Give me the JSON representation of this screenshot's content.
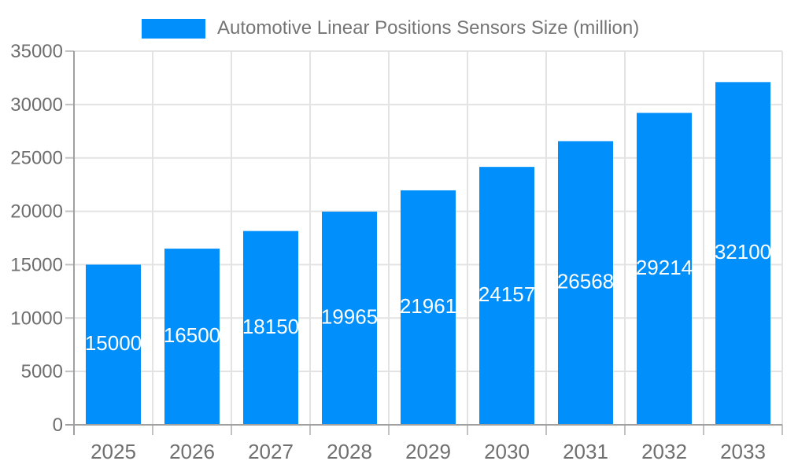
{
  "chart_data": {
    "type": "bar",
    "title": "Automotive Linear Positions Sensors Size (million)",
    "series_name": "Automotive Linear Positions Sensors Size (million)",
    "categories": [
      "2025",
      "2026",
      "2027",
      "2028",
      "2029",
      "2030",
      "2031",
      "2032",
      "2033"
    ],
    "values": [
      15000,
      16500,
      18150,
      19965,
      21961,
      24157,
      26568,
      29214,
      32100
    ],
    "xlabel": "",
    "ylabel": "",
    "ylim": [
      0,
      35000
    ],
    "y_tick_step": 5000,
    "y_ticks": [
      0,
      5000,
      10000,
      15000,
      20000,
      25000,
      30000,
      35000
    ],
    "grid": true,
    "legend_position": "top-center",
    "data_labels_position": "inside-center",
    "colors": {
      "bar": "#008ffb",
      "data_label": "#ffffff",
      "axis_label": "#6f6f6f",
      "legend_label": "#757575",
      "gridline": "#e3e3e3",
      "tick": "#c2c2c2",
      "axis_line": "#a0a0a0",
      "background": "#ffffff"
    }
  }
}
